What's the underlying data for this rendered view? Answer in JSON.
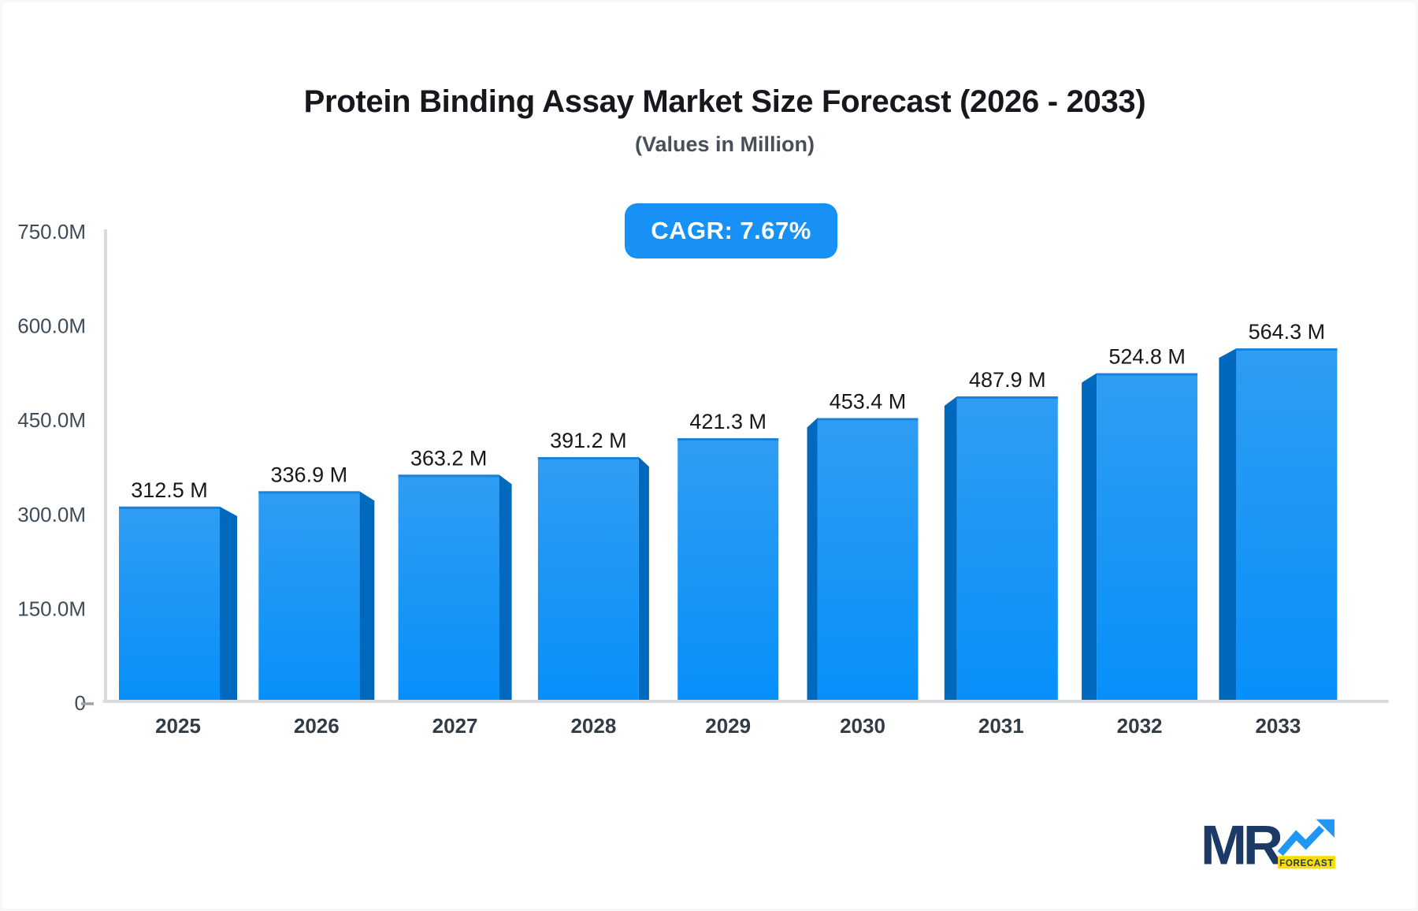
{
  "chart_data": {
    "type": "bar",
    "title": "Protein Binding Assay Market Size Forecast (2026 - 2033)",
    "subtitle": "(Values in Million)",
    "badge": "CAGR: 7.67%",
    "categories": [
      "2025",
      "2026",
      "2027",
      "2028",
      "2029",
      "2030",
      "2031",
      "2032",
      "2033"
    ],
    "values": [
      312.5,
      336.9,
      363.2,
      391.2,
      421.3,
      453.4,
      487.9,
      524.8,
      564.3
    ],
    "value_labels": [
      "312.5 M",
      "336.9 M",
      "363.2 M",
      "391.2 M",
      "421.3 M",
      "453.4 M",
      "487.9 M",
      "524.8 M",
      "564.3 M"
    ],
    "y_ticks": [
      "750.0M",
      "600.0M",
      "450.0M",
      "300.0M",
      "150.0M",
      "0"
    ],
    "ylim": [
      0,
      750
    ],
    "xlabel": "",
    "ylabel": "",
    "grid": false,
    "legend": false,
    "colors": {
      "bar_face_top": "#2f9df2",
      "bar_face_bottom": "#0790fa",
      "bar_side": "#0069be",
      "bar_top_stroke": "#1a82dc",
      "badge_bg": "#1791f5",
      "axis_line": "#d8dce0",
      "zero_tick": "#99a1aa",
      "title_text": "#16181d",
      "subtitle_text": "#474f58",
      "logo_navy": "#1b3b66",
      "logo_blue": "#2196f3",
      "logo_yellow": "#ffdc00"
    }
  },
  "logo": {
    "mr": "MR",
    "forecast": "FORECAST"
  }
}
